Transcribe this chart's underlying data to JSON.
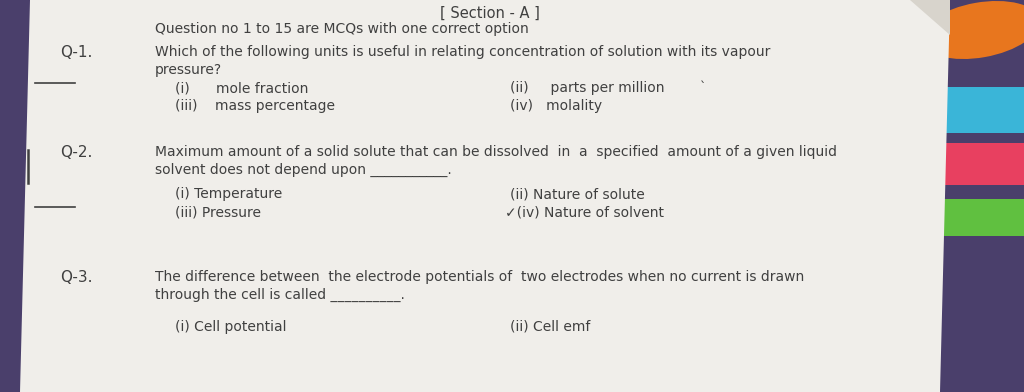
{
  "bg_color": "#4a3f6b",
  "paper_color": "#f0eeea",
  "text_color": "#404040",
  "header_text": "[ Section - A ]",
  "subtitle": "Question no 1 to 15 are MCQs with one correct option",
  "q1_label": "Q-1.",
  "q1_line1": "Which of the following units is useful in relating concentration of solution with its vapour",
  "q1_line2": "pressure?",
  "q1_i": "(i)      mole fraction",
  "q1_ii": "(ii)     parts per million",
  "q1_iii": "(iii)    mass percentage",
  "q1_iv": "(iv)   molality",
  "q2_label": "Q-2.",
  "q2_line1": "Maximum amount of a solid solute that can be dissolved  in  a  specified  amount of a given liquid",
  "q2_line2": "solvent does not depend upon ___________.",
  "q2_i": "(i) Temperature",
  "q2_ii": "(ii) Nature of solute",
  "q2_iii": "(iii) Pressure",
  "q2_iv": "(iv) Nature of solvent",
  "q3_label": "Q-3.",
  "q3_line1": "The difference between  the electrode potentials of  two electrodes when no current is drawn",
  "q3_line2": "through the cell is called __________.",
  "q3_i": "(i) Cell potential",
  "q3_ii": "(ii) Cell emf",
  "accent_colors": [
    "#e8761e",
    "#3ab5d8",
    "#e84060",
    "#60c040"
  ],
  "fontsize": 10.0,
  "label_fontsize": 11.0
}
